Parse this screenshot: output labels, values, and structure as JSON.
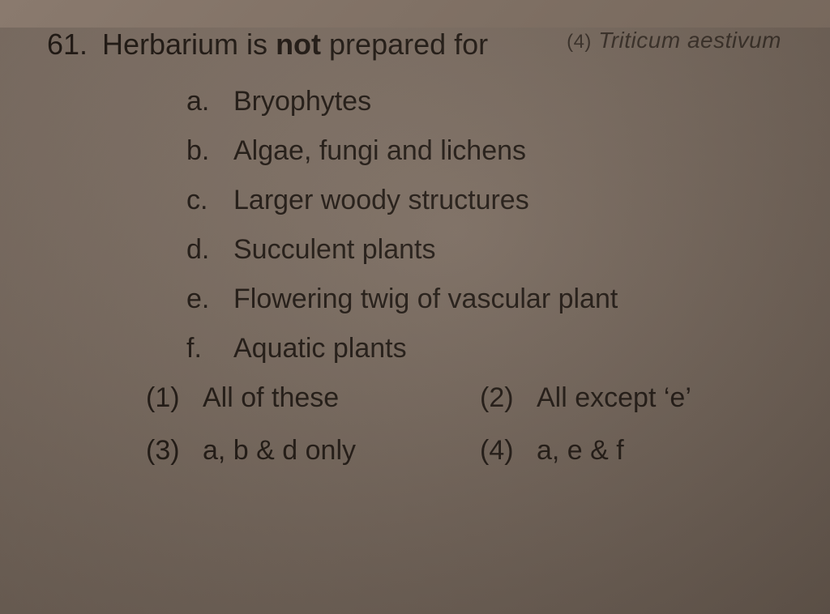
{
  "partial_top": {
    "prefix": "(4)",
    "text": "Triticum aestivum"
  },
  "question": {
    "number": "61.",
    "stem_before": "Herbarium is ",
    "stem_bold": "not",
    "stem_after": " prepared for"
  },
  "options": [
    {
      "letter": "a.",
      "text": "Bryophytes"
    },
    {
      "letter": "b.",
      "text": "Algae, fungi and lichens"
    },
    {
      "letter": "c.",
      "text": "Larger woody structures"
    },
    {
      "letter": "d.",
      "text": "Succulent plants"
    },
    {
      "letter": "e.",
      "text": "Flowering twig of vascular plant"
    },
    {
      "letter": "f.",
      "text": "Aquatic plants"
    }
  ],
  "answers": [
    {
      "num": "(1)",
      "text": "All of these"
    },
    {
      "num": "(2)",
      "text": "All except ‘e’"
    },
    {
      "num": "(3)",
      "text": "a, b & d only"
    },
    {
      "num": "(4)",
      "text": "a, e & f"
    }
  ]
}
